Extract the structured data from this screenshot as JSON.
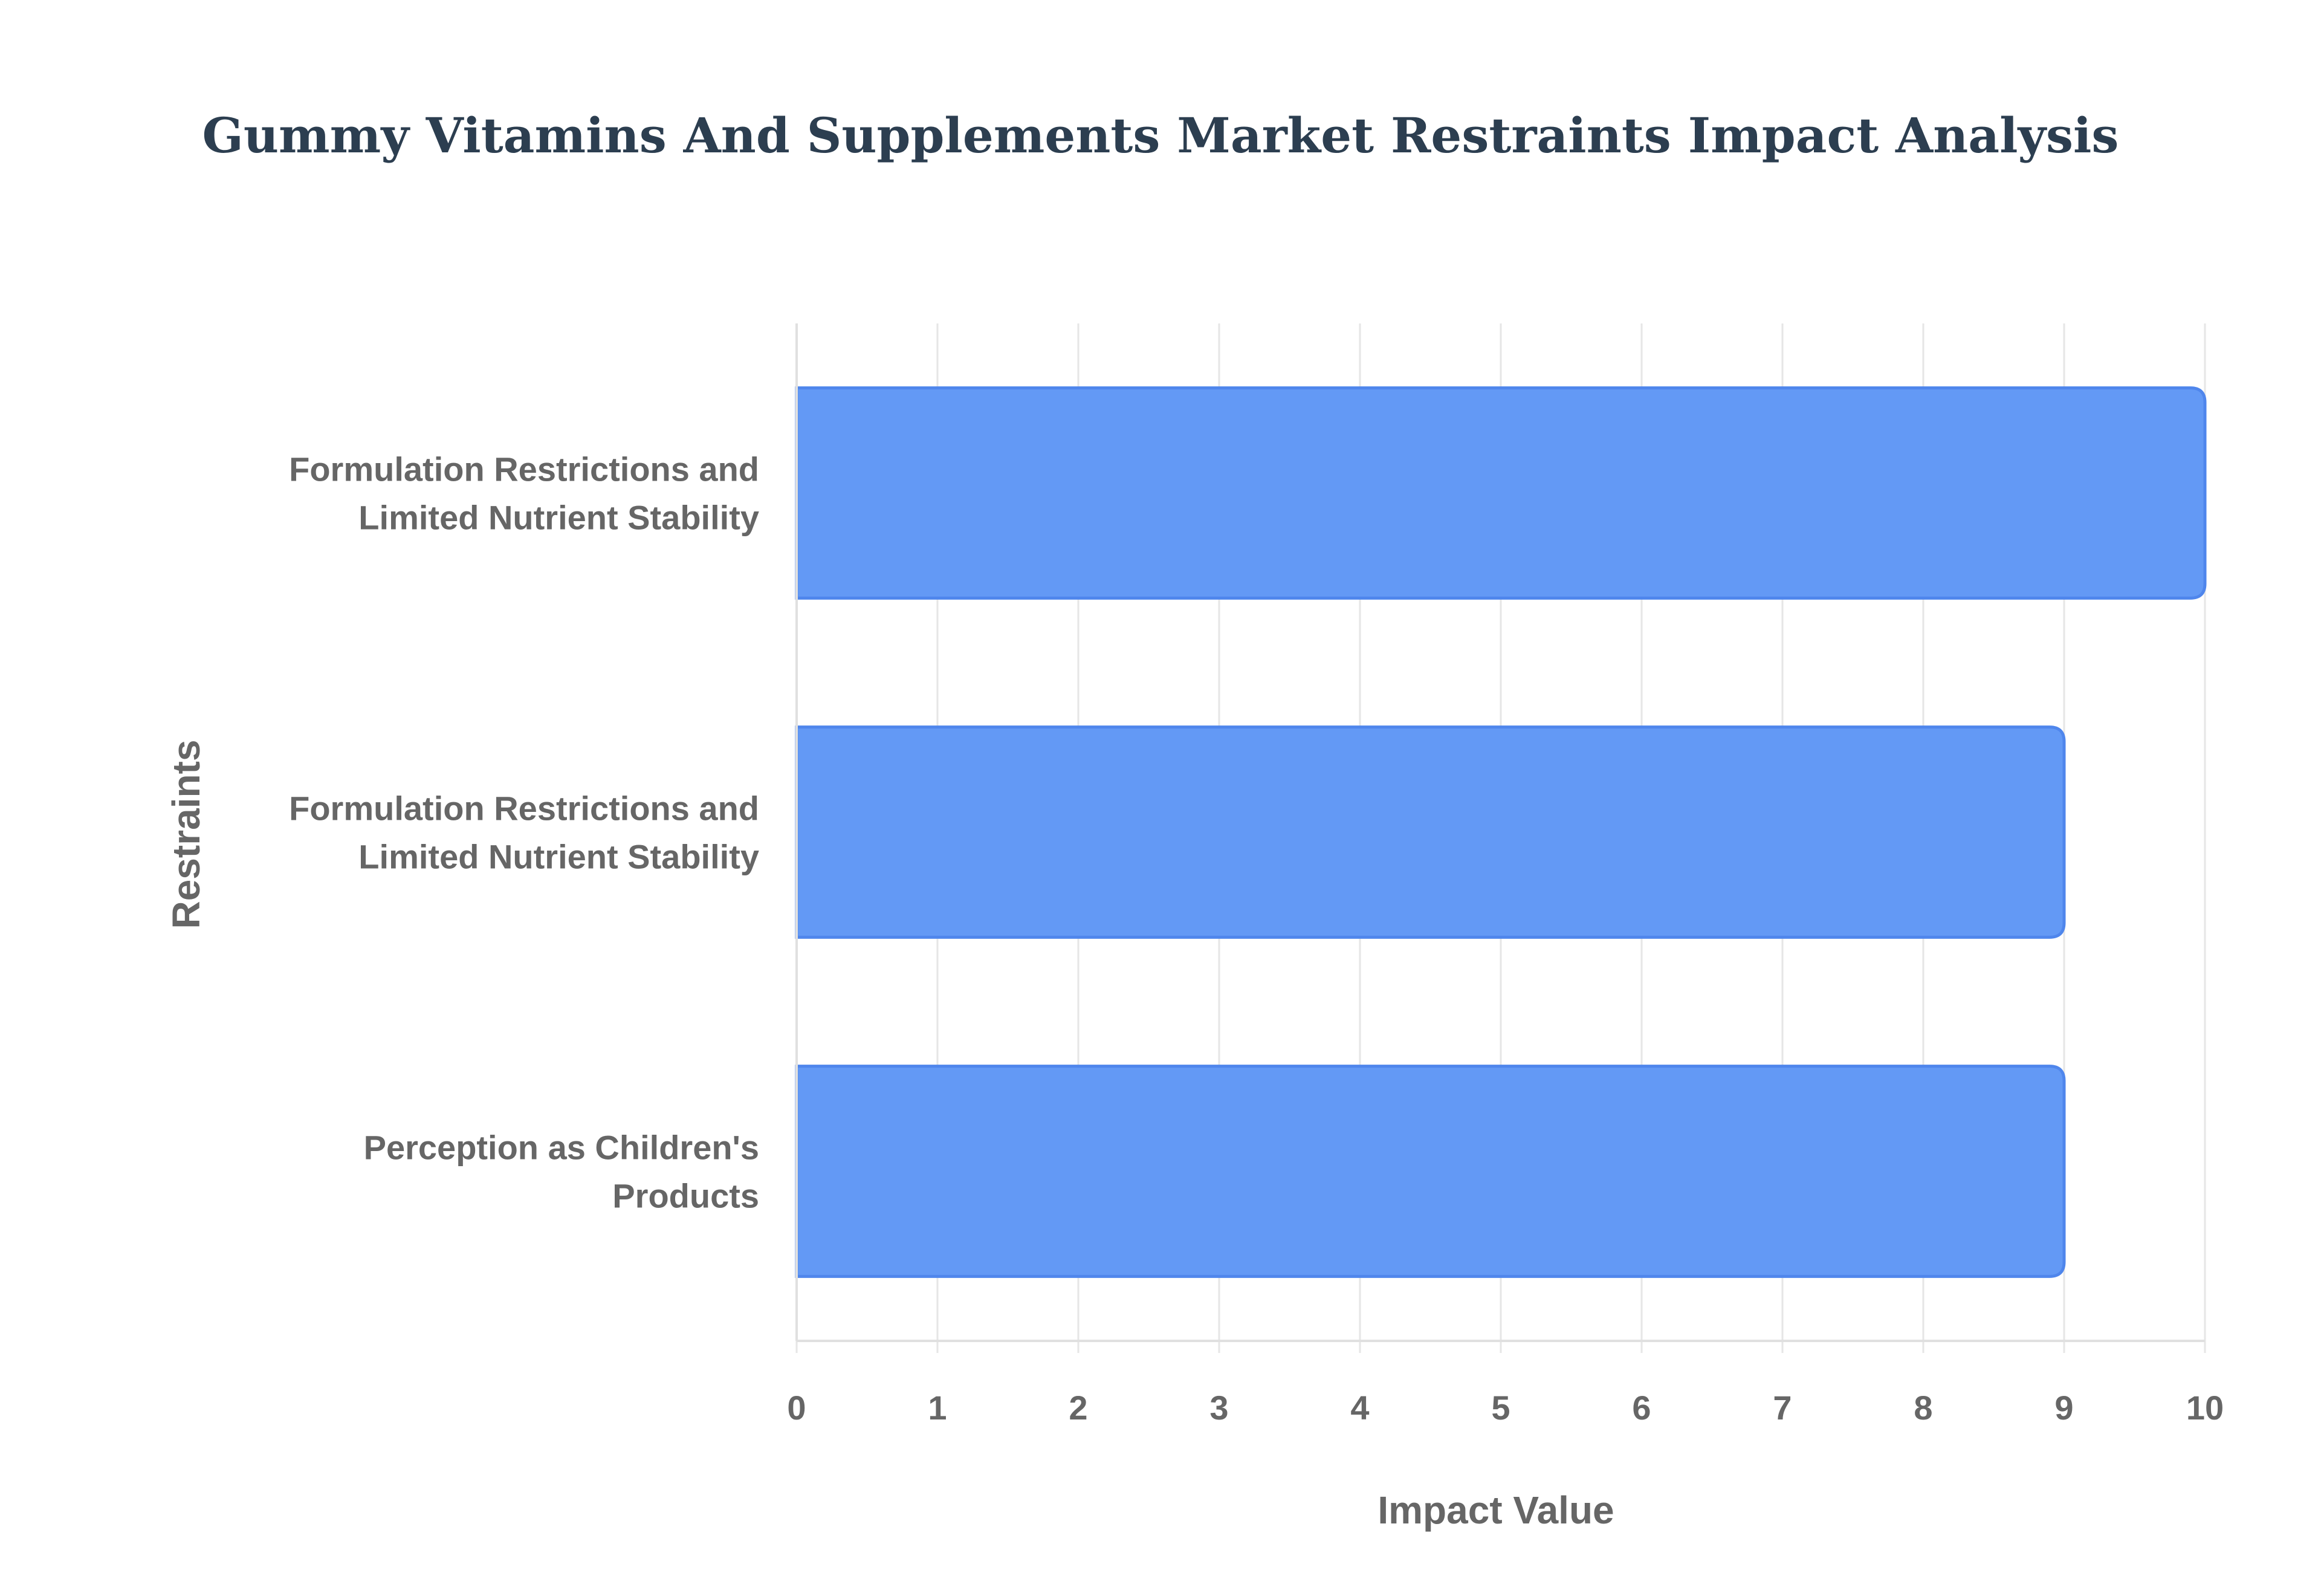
{
  "chart_data": {
    "type": "bar",
    "orientation": "horizontal",
    "title": "Gummy Vitamins And Supplements Market Restraints Impact Analysis",
    "xlabel": "Impact Value",
    "ylabel": "Restraints",
    "categories": [
      "Formulation Restrictions and Limited Nutrient Stability",
      "Formulation Restrictions and Limited Nutrient Stability",
      "Perception as Children's Products"
    ],
    "category_lines": [
      [
        "Formulation Restrictions and",
        "Limited Nutrient Stability"
      ],
      [
        "Formulation Restrictions and",
        "Limited Nutrient Stability"
      ],
      [
        "Perception as Children's",
        "Products"
      ]
    ],
    "values": [
      10,
      9,
      9
    ],
    "xlim": [
      0,
      10
    ],
    "xticks": [
      0,
      1,
      2,
      3,
      4,
      5,
      6,
      7,
      8,
      9,
      10
    ],
    "grid": true,
    "legend": "none",
    "bar_color": "#6399f5",
    "bar_border_color": "#4f86ec"
  }
}
